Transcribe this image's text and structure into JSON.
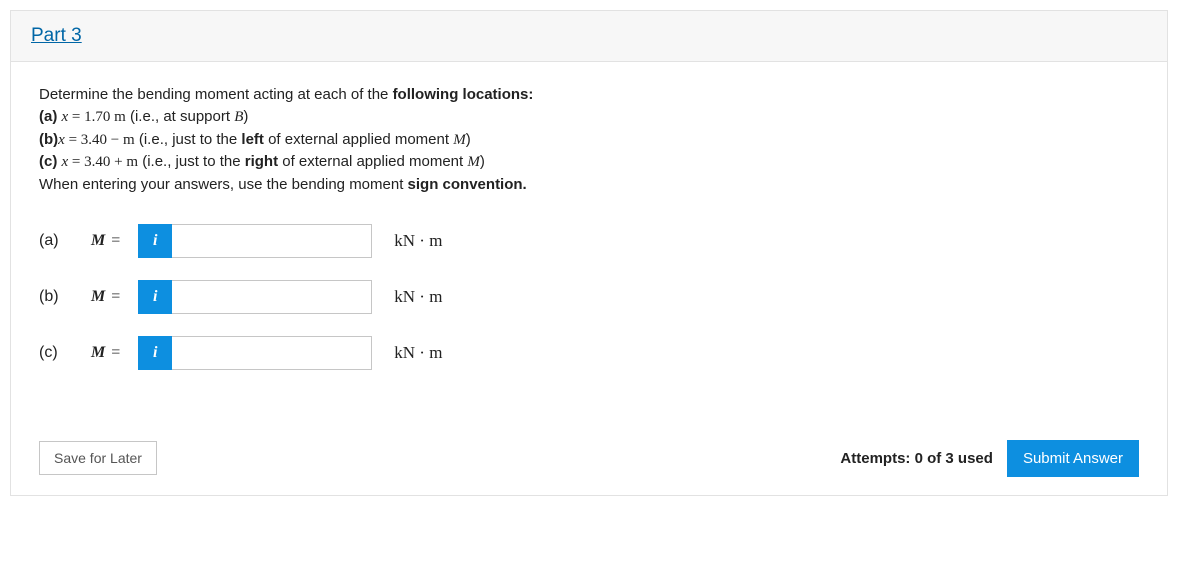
{
  "colors": {
    "accent": "#0d8fe0",
    "link": "#0066a6",
    "border": "#e2e2e2",
    "input_border": "#c6c6c6",
    "header_bg": "#f7f7f7",
    "body_bg": "#ffffff",
    "text": "#222222"
  },
  "header": {
    "title": "Part 3"
  },
  "prompt": {
    "intro_pre": "Determine the bending moment acting at each of the ",
    "intro_bold": "following locations:",
    "line_a_label": "(a) ",
    "line_a_var": "x",
    "line_a_eq": " = ",
    "line_a_val": "1.70 m",
    "line_a_desc": " (i.e., at support ",
    "line_a_sup": "B",
    "line_a_close": ")",
    "line_b_label": "(b)",
    "line_b_var": "x",
    "line_b_eq": " = ",
    "line_b_val": "3.40 − ",
    "line_b_unit": " m",
    "line_b_desc_pre": " (i.e., just to the ",
    "line_b_desc_bold": "left",
    "line_b_desc_mid": " of external applied moment ",
    "line_b_desc_var": "M",
    "line_b_desc_close": ")",
    "line_c_label": "(c) ",
    "line_c_var": "x",
    "line_c_eq": " = ",
    "line_c_val": "3.40 + ",
    "line_c_unit": " m",
    "line_c_desc_pre": " (i.e., just to the ",
    "line_c_desc_bold": "right",
    "line_c_desc_mid": " of external applied moment ",
    "line_c_desc_var": "M",
    "line_c_desc_close": ")",
    "note_pre": "When entering your answers, use the bending moment ",
    "note_bold": "sign convention."
  },
  "answers": {
    "a": {
      "label": "(a)",
      "var": "M",
      "equals": "=",
      "info": "i",
      "value": "",
      "unit": "kN · m"
    },
    "b": {
      "label": "(b)",
      "var": "M",
      "equals": "=",
      "info": "i",
      "value": "",
      "unit": "kN · m"
    },
    "c": {
      "label": "(c)",
      "var": "M",
      "equals": "=",
      "info": "i",
      "value": "",
      "unit": "kN · m"
    }
  },
  "footer": {
    "save": "Save for Later",
    "attempts": "Attempts: 0 of 3 used",
    "submit": "Submit Answer"
  }
}
